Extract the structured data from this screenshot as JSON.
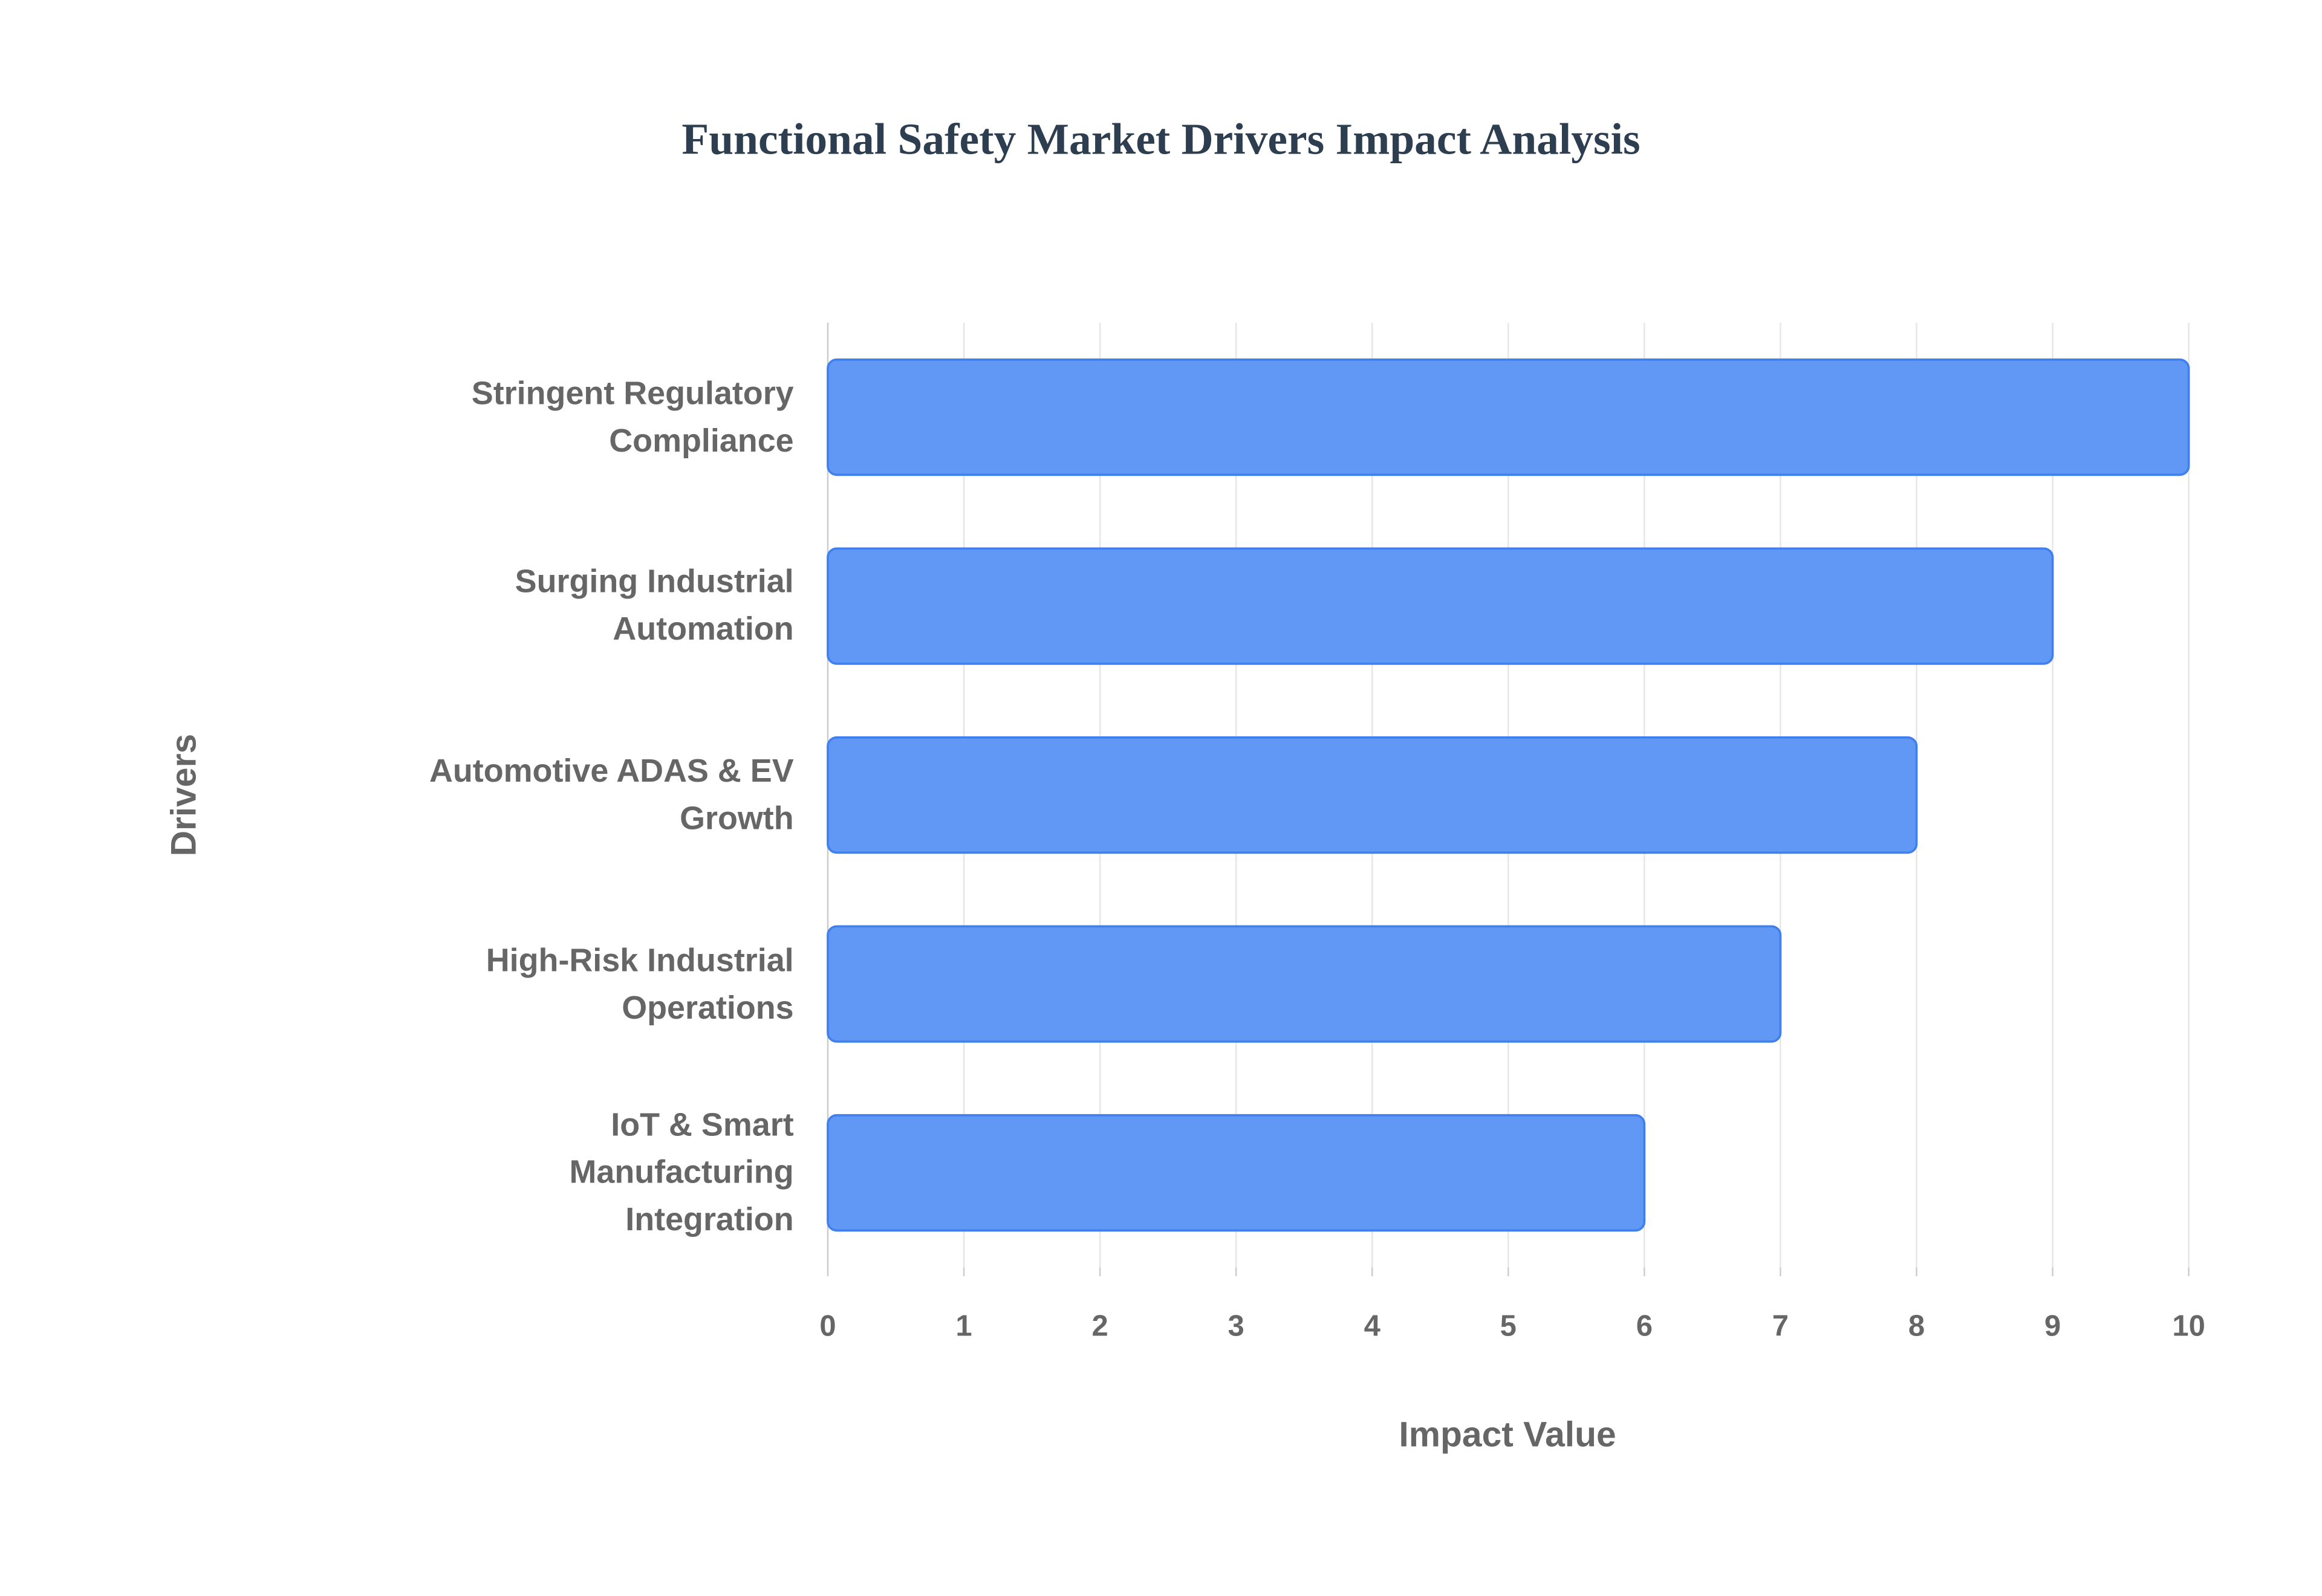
{
  "chart_data": {
    "type": "bar",
    "orientation": "horizontal",
    "title": "Functional Safety Market Drivers Impact Analysis",
    "x_label": "Impact Value",
    "y_label": "Drivers",
    "categories": [
      "Stringent Regulatory Compliance",
      "Surging Industrial Automation",
      "Automotive ADAS & EV Growth",
      "High-Risk Industrial Operations",
      "IoT & Smart Manufacturing Integration"
    ],
    "values": [
      10,
      9,
      8,
      7,
      6
    ],
    "color": "#6198f5",
    "xlim": [
      0,
      10
    ],
    "xticks": [
      0,
      1,
      2,
      3,
      4,
      5,
      6,
      7,
      8,
      9,
      10
    ],
    "grid": true
  }
}
